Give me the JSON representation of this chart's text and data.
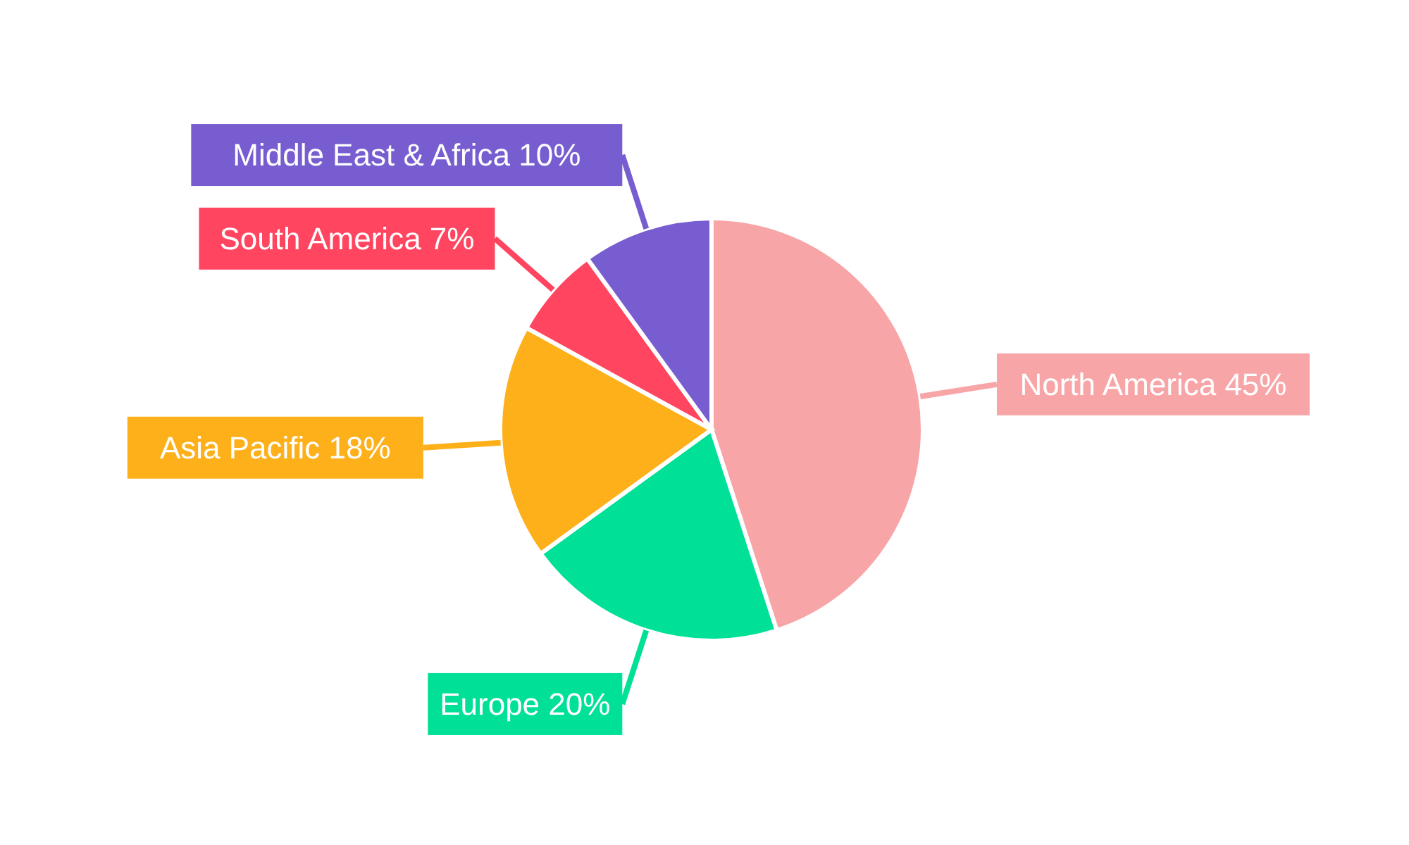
{
  "chart_data": {
    "type": "pie",
    "categories": [
      "North America",
      "Europe",
      "Asia Pacific",
      "South America",
      "Middle East & Africa"
    ],
    "values": [
      45,
      20,
      18,
      7,
      10
    ],
    "value_labels": [
      "45%",
      "20%",
      "18%",
      "7%",
      "10%"
    ],
    "colors": [
      "#f8a5a8",
      "#00e096",
      "#fdb01a",
      "#ff4560",
      "#775dd0"
    ],
    "legend": false
  }
}
